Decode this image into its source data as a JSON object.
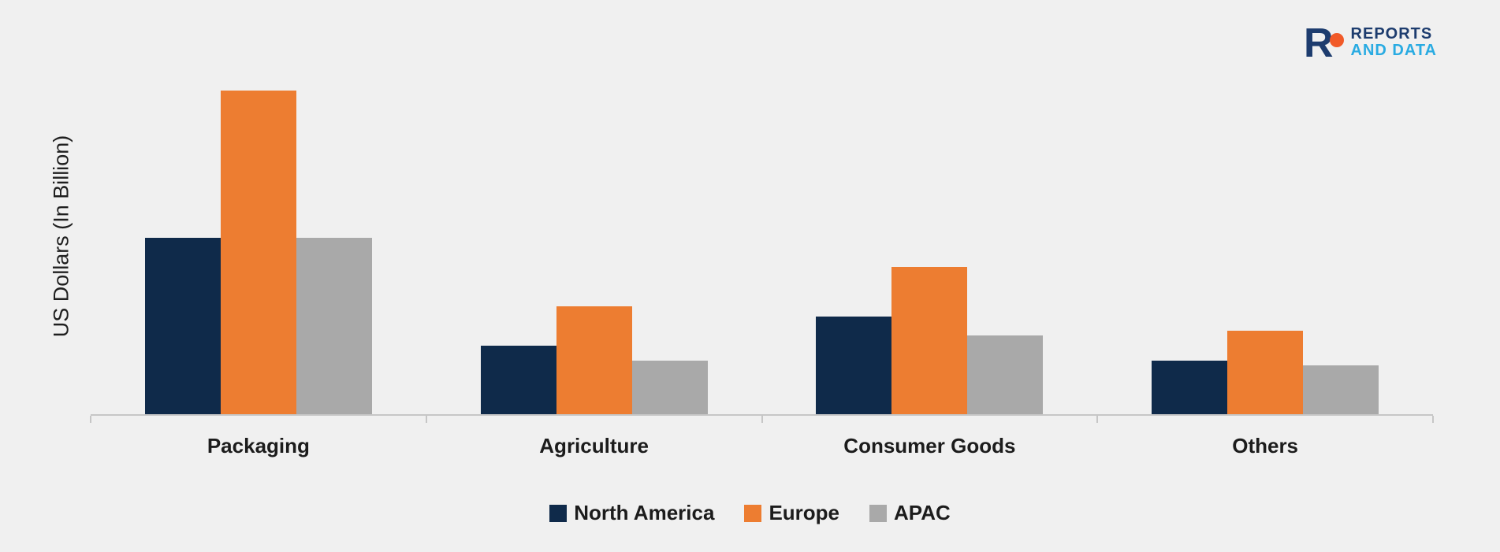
{
  "logo": {
    "title": "REPORTS",
    "subtitle": "AND DATA",
    "mark_letter": "R"
  },
  "chart_data": {
    "type": "bar",
    "title": "",
    "xlabel": "",
    "ylabel": "US Dollars (In Billion)",
    "categories": [
      "Packaging",
      "Agriculture",
      "Consumer Goods",
      "Others"
    ],
    "series": [
      {
        "name": "North America",
        "color": "#0f2a4a",
        "values": [
          18,
          7,
          10,
          5.5
        ]
      },
      {
        "name": "Europe",
        "color": "#ed7d31",
        "values": [
          33,
          11,
          15,
          8.5
        ]
      },
      {
        "name": "APAC",
        "color": "#a9a9a9",
        "values": [
          18,
          5.5,
          8,
          5
        ]
      }
    ],
    "ylim": [
      0,
      36
    ],
    "grid": false,
    "legend_position": "bottom",
    "y_tick_labels_visible": false
  },
  "colors": {
    "background": "#f0f0f0",
    "axis": "#c6c6c6",
    "text": "#1c1c1c",
    "logo_navy": "#1d3c6e",
    "logo_cyan": "#29abe2",
    "logo_dot_orange": "#f15a29"
  }
}
